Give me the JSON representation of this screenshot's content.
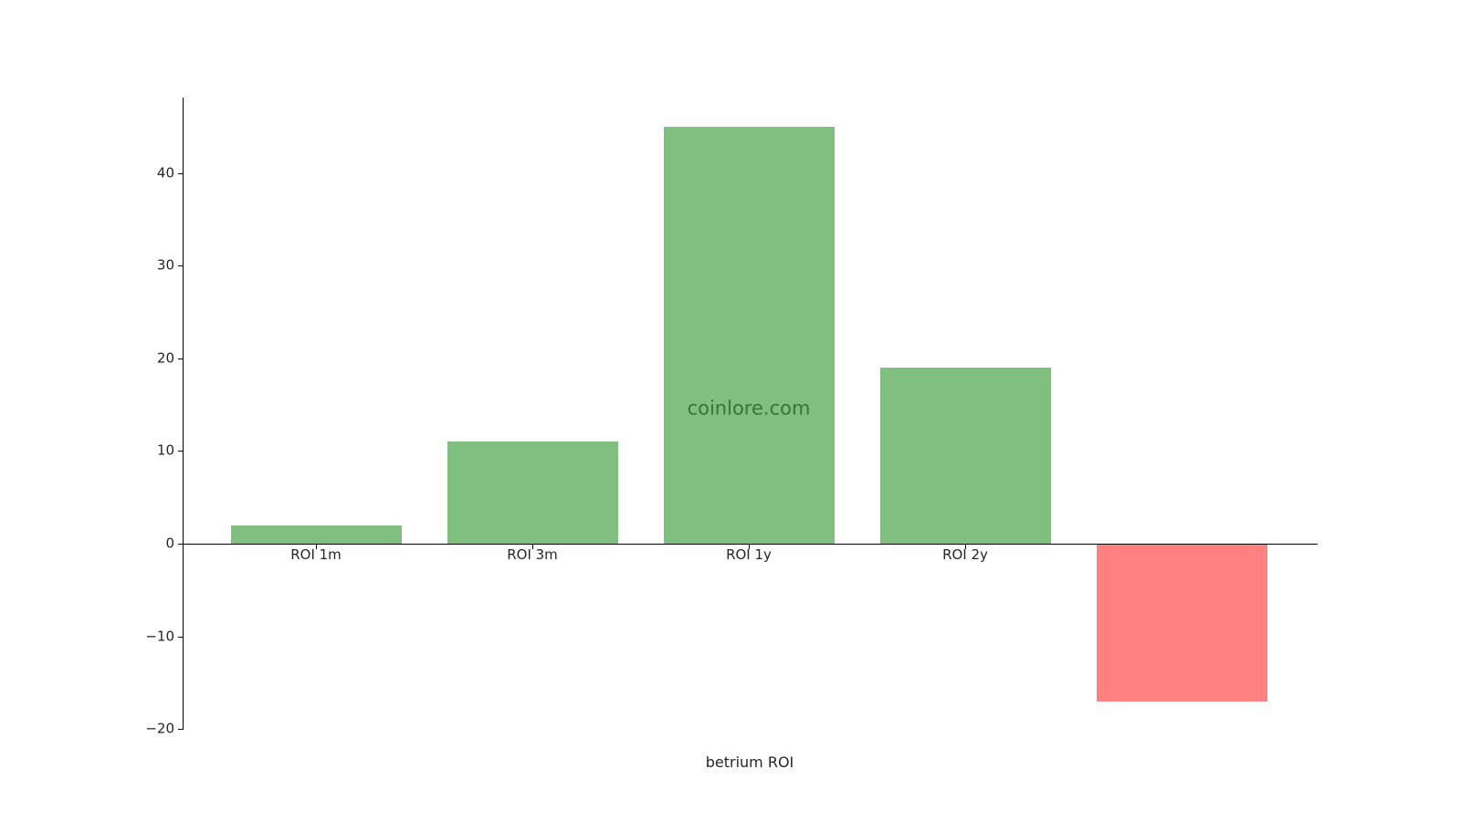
{
  "chart_data": {
    "type": "bar",
    "title": "",
    "xlabel": "betrium ROI",
    "ylabel": "",
    "categories": [
      "ROI 1m",
      "ROI 3m",
      "ROI 1y",
      "ROI 2y",
      ""
    ],
    "values": [
      2,
      11,
      45,
      19,
      -17
    ],
    "yticks": [
      40,
      30,
      20,
      10,
      0,
      -10,
      -20
    ],
    "ylim": [
      -20.1,
      48.1
    ],
    "grid": false,
    "legend": "none",
    "colors": {
      "positive_bar": "#80bf80",
      "negative_bar": "#ff8080",
      "axis": "#000000",
      "tick_text": "#262626",
      "watermark_text": "#37733c"
    },
    "watermark": "coinlore.com"
  }
}
